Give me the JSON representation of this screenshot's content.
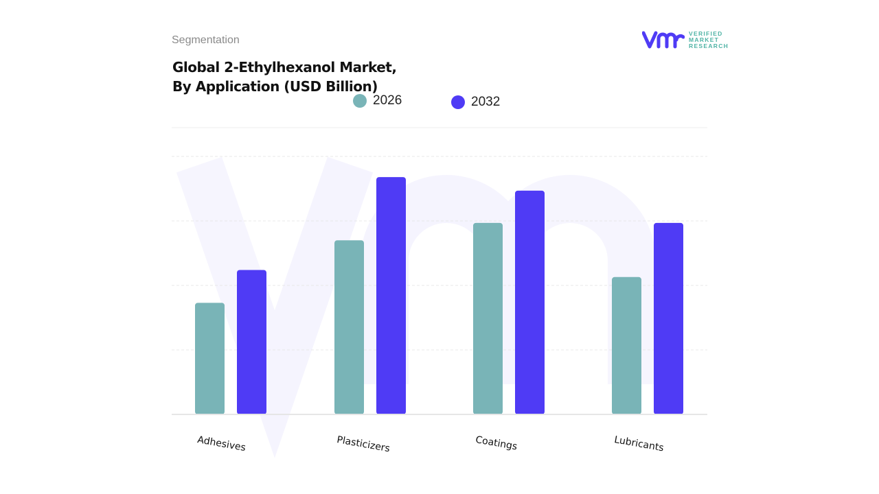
{
  "header": {
    "segment_label": "Segmentation",
    "title_line1": "Global 2-Ethylhexanol Market,",
    "title_line2": "By Application (USD Billion)"
  },
  "logo": {
    "line1": "VERIFIED",
    "line2": "MARKET",
    "line3": "RESEARCH",
    "mark": "vmr"
  },
  "chart_data": {
    "type": "bar",
    "title": "Global 2-Ethylhexanol Market, By Application (USD Billion)",
    "categories": [
      "Adhesives",
      "Plasticizers",
      "Coatings",
      "Lubricants"
    ],
    "series": [
      {
        "name": "2026",
        "color": "#79b4b7",
        "values": [
          1.73,
          2.7,
          2.97,
          2.13
        ]
      },
      {
        "name": "2032",
        "color": "#4f3bf5",
        "values": [
          2.24,
          3.68,
          3.47,
          2.97
        ]
      }
    ],
    "ylim": [
      0,
      4
    ],
    "grid": true,
    "legend": "top-center",
    "xlabel": "",
    "ylabel": ""
  }
}
